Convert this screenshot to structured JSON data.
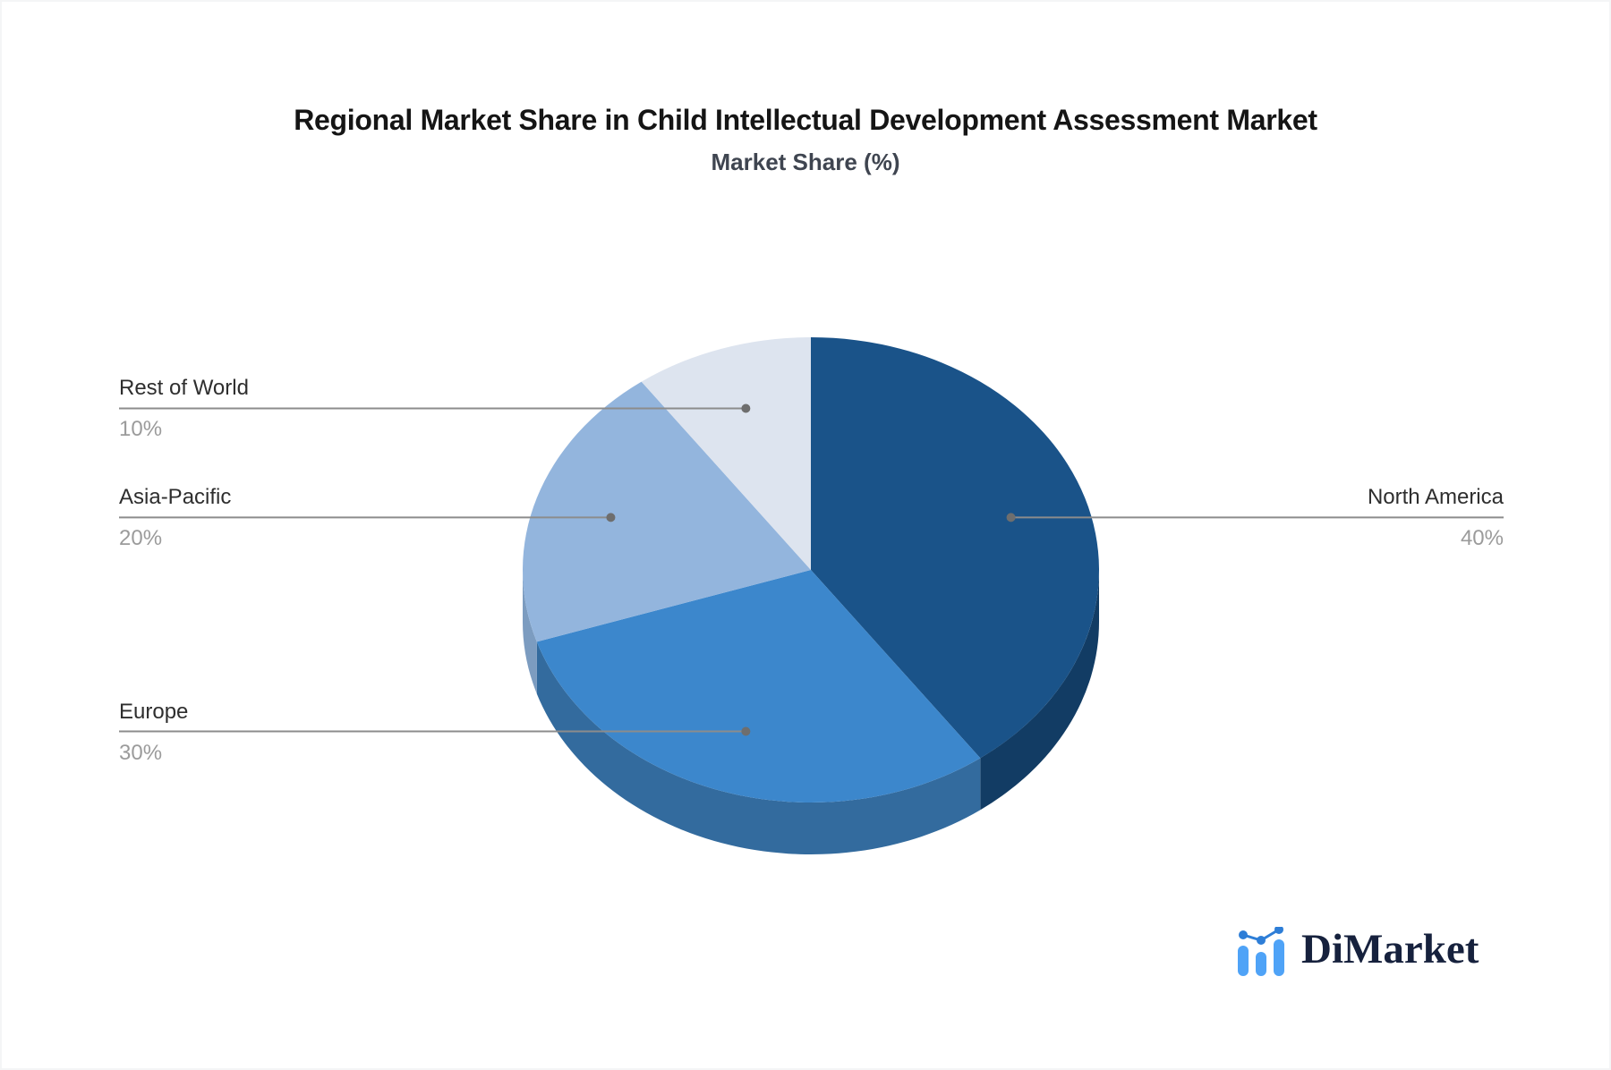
{
  "header": {
    "title": "Regional Market Share in Child Intellectual Development Assessment Market",
    "subtitle": "Market Share (%)"
  },
  "chart_data": {
    "type": "pie",
    "style": "3d",
    "title": "Regional Market Share in Child Intellectual Development Assessment Market",
    "subtitle": "Market Share (%)",
    "unit": "%",
    "start_angle_deg": 0,
    "direction": "clockwise",
    "categories": [
      "North America",
      "Europe",
      "Asia-Pacific",
      "Rest of World"
    ],
    "values": [
      40,
      30,
      20,
      10
    ],
    "value_labels": [
      "40%",
      "30%",
      "20%",
      "10%"
    ],
    "slice_colors": [
      "#1A5389",
      "#3C87CC",
      "#93B5DD",
      "#DDE4EF"
    ],
    "slice_side_colors": [
      "#123C64",
      "#336B9E",
      "#7C9CC0",
      "#C2CCDD"
    ],
    "leader_line_color": "#8C8C8C",
    "leader_dot_color": "#6E6E6E",
    "category_text_color": "#2E2E2E",
    "value_text_color": "#9B9B9B",
    "legend_position": "none",
    "grid": false
  },
  "branding": {
    "logo_text": "DiMarket",
    "logo_icon": "bar-line-chart-icon",
    "logo_bar_color": "#4FA3F7",
    "logo_line_color": "#2E7ED7",
    "logo_text_color": "#16213D"
  }
}
